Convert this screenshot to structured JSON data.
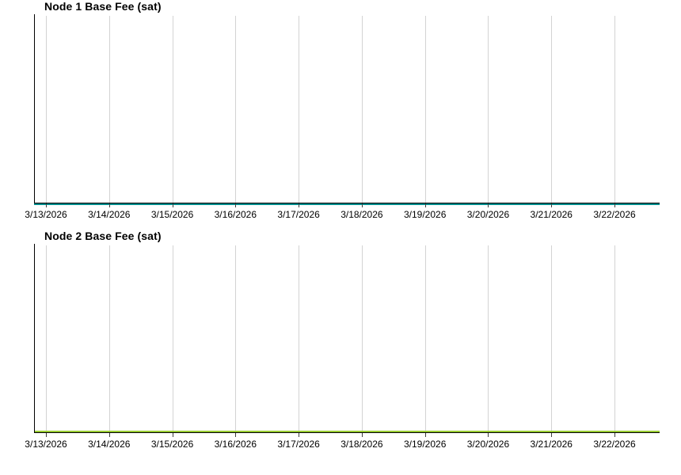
{
  "page": {
    "background": "#ffffff"
  },
  "chart_data": [
    {
      "type": "line",
      "title": "Node 1 Base Fee (sat)",
      "x": [
        "3/13/2026",
        "3/14/2026",
        "3/15/2026",
        "3/16/2026",
        "3/17/2026",
        "3/18/2026",
        "3/19/2026",
        "3/20/2026",
        "3/21/2026",
        "3/22/2026"
      ],
      "series": [
        {
          "name": "Node 1 Base Fee",
          "values": [
            0,
            0,
            0,
            0,
            0,
            0,
            0,
            0,
            0,
            0
          ],
          "color": "#008b8b"
        }
      ],
      "xlabel": "",
      "ylabel": "",
      "y_tick_labels": [],
      "ylim": [
        0,
        null
      ],
      "grid": "vertical-only",
      "grid_color": "#d3d3d3",
      "axis_color": "#000000",
      "tick_color": "#404040",
      "label_color": "#000000",
      "title_color": "#000000",
      "legend": "none"
    },
    {
      "type": "line",
      "title": "Node 2 Base Fee (sat)",
      "x": [
        "3/13/2026",
        "3/14/2026",
        "3/15/2026",
        "3/16/2026",
        "3/17/2026",
        "3/18/2026",
        "3/19/2026",
        "3/20/2026",
        "3/21/2026",
        "3/22/2026"
      ],
      "series": [
        {
          "name": "Node 2 Base Fee",
          "values": [
            0,
            0,
            0,
            0,
            0,
            0,
            0,
            0,
            0,
            0
          ],
          "color": "#9acd32"
        }
      ],
      "xlabel": "",
      "ylabel": "",
      "y_tick_labels": [],
      "ylim": [
        0,
        null
      ],
      "grid": "vertical-only",
      "grid_color": "#d3d3d3",
      "axis_color": "#000000",
      "tick_color": "#404040",
      "label_color": "#000000",
      "title_color": "#000000",
      "legend": "none"
    }
  ]
}
